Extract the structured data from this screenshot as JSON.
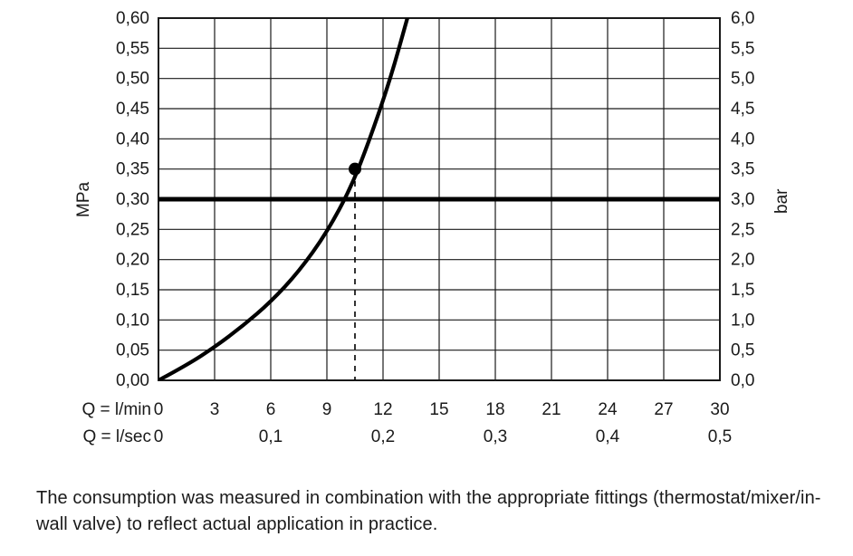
{
  "chart": {
    "type": "line",
    "background_color": "#ffffff",
    "grid_color": "#1a1a1a",
    "grid_stroke_width": 1.2,
    "outer_border_width": 2.0,
    "curve_color": "#000000",
    "curve_width": 4.2,
    "reference_line_width": 5.0,
    "dashed_line_width": 1.6,
    "dash_pattern": "6,6",
    "marker_radius": 7,
    "marker_color": "#000000",
    "font_size_ticks": 19,
    "font_size_axis_label": 19,
    "x": {
      "min": 0,
      "max": 30,
      "ticks_lmin": [
        0,
        3,
        6,
        9,
        12,
        15,
        18,
        21,
        24,
        27,
        30
      ],
      "ticks_lsec": [
        {
          "x": 0,
          "label": "0"
        },
        {
          "x": 6,
          "label": "0,1"
        },
        {
          "x": 12,
          "label": "0,2"
        },
        {
          "x": 18,
          "label": "0,3"
        },
        {
          "x": 24,
          "label": "0,4"
        },
        {
          "x": 30,
          "label": "0,5"
        }
      ],
      "label_lmin_prefix": "Q = l/min",
      "label_lsec_prefix": "Q = l/sec"
    },
    "y_left": {
      "unit": "MPa",
      "min": 0.0,
      "max": 0.6,
      "ticks": [
        "0,00",
        "0,05",
        "0,10",
        "0,15",
        "0,20",
        "0,25",
        "0,30",
        "0,35",
        "0,40",
        "0,45",
        "0,50",
        "0,55",
        "0,60"
      ]
    },
    "y_right": {
      "unit": "bar",
      "min": 0.0,
      "max": 6.0,
      "ticks": [
        "0,0",
        "0,5",
        "1,0",
        "1,5",
        "2,0",
        "2,5",
        "3,0",
        "3,5",
        "4,0",
        "4,5",
        "5,0",
        "5,5",
        "6,0"
      ]
    },
    "curve_points_lmin_mpa": [
      [
        0.0,
        0.0
      ],
      [
        1.5,
        0.025
      ],
      [
        3.0,
        0.055
      ],
      [
        4.5,
        0.09
      ],
      [
        6.0,
        0.13
      ],
      [
        7.5,
        0.18
      ],
      [
        9.0,
        0.245
      ],
      [
        10.3,
        0.32
      ],
      [
        11.3,
        0.4
      ],
      [
        12.4,
        0.5
      ],
      [
        13.3,
        0.6
      ]
    ],
    "reference_y_mpa": 0.3,
    "marker_point_lmin_mpa": [
      10.5,
      0.35
    ],
    "dashed_drop_x_lmin": 10.5,
    "dashed_drop_from_y_mpa": 0.33
  },
  "caption": "The consumption was measured in combination with the appropriate fittings (thermostat/mixer/in-wall valve) to reflect actual application in practice."
}
